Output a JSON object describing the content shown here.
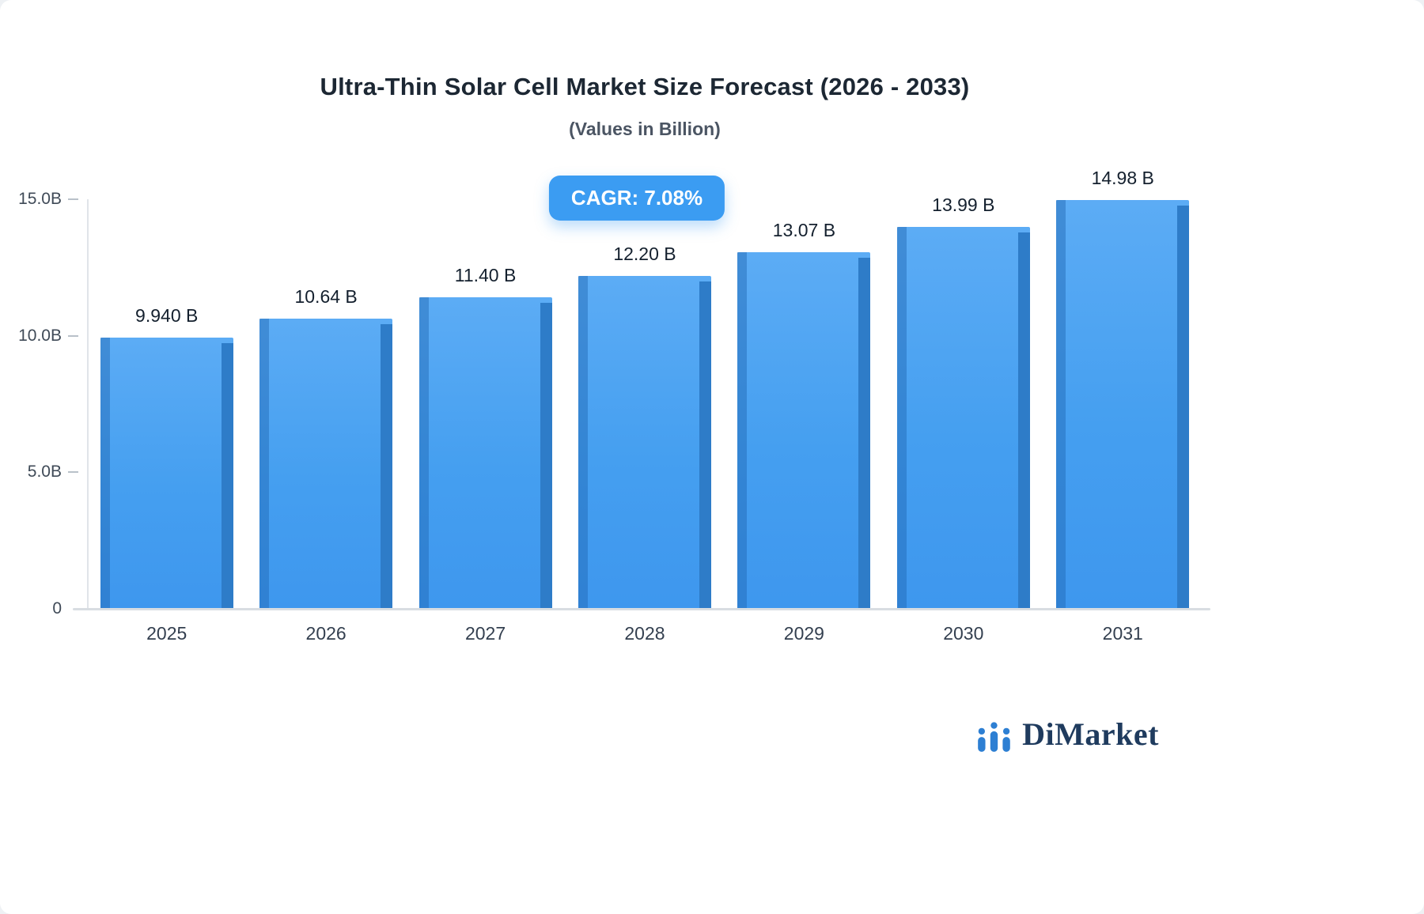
{
  "header": {
    "title": "Ultra-Thin Solar Cell Market Size Forecast (2026 - 2033)",
    "subtitle": "(Values in Billion)"
  },
  "badge": {
    "label": "CAGR: 7.08%"
  },
  "logo": {
    "text": "DiMarket",
    "icon": "bar-chart-dots-icon",
    "color": "#2d7fd3"
  },
  "chart_data": {
    "type": "bar",
    "title": "Ultra-Thin Solar Cell Market Size Forecast (2026 - 2033)",
    "subtitle": "(Values in Billion)",
    "categories": [
      "2025",
      "2026",
      "2027",
      "2028",
      "2029",
      "2030",
      "2031"
    ],
    "values": [
      9.94,
      10.64,
      11.4,
      12.2,
      13.07,
      13.99,
      14.98
    ],
    "value_labels": [
      "9.940 B",
      "10.64 B",
      "11.40 B",
      "12.20 B",
      "13.07 B",
      "13.99 B",
      "14.98 B"
    ],
    "xlabel": "",
    "ylabel": "",
    "ylim": [
      0,
      15
    ],
    "yticks": [
      {
        "value": 0,
        "label": "0"
      },
      {
        "value": 5,
        "label": "5.0B"
      },
      {
        "value": 10,
        "label": "10.0B"
      },
      {
        "value": 15,
        "label": "15.0B"
      }
    ],
    "grid": false,
    "legend": false,
    "annotation": "CAGR: 7.08%",
    "bar_color_top": "#5cacf5",
    "bar_color_bottom": "#3e97ee",
    "bar_side_color": "#2e7cc8"
  }
}
